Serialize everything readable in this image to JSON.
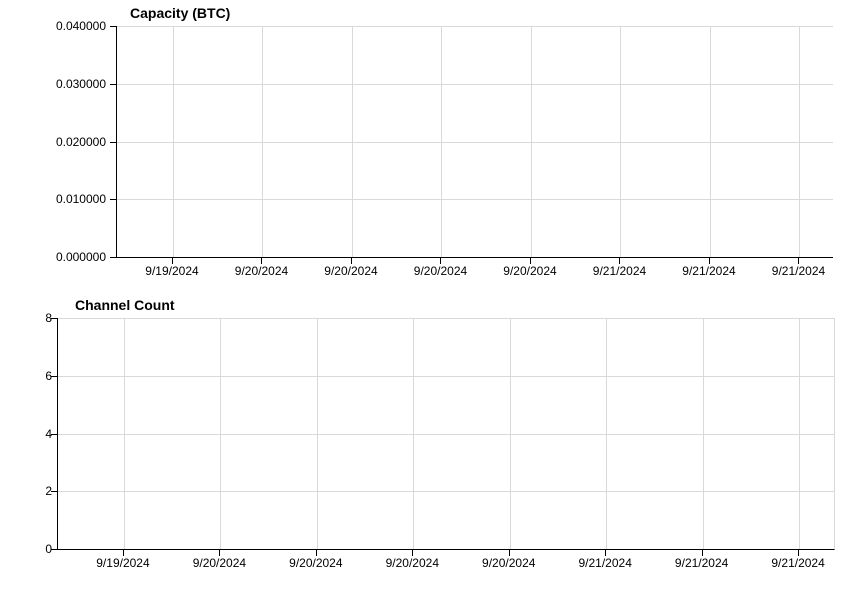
{
  "page": {
    "background": "#ffffff"
  },
  "colors": {
    "grid": "#d9d9d9",
    "axis": "#000000",
    "text": "#000000",
    "title": "#000000"
  },
  "chart_data": [
    {
      "type": "line",
      "title": "Capacity (BTC)",
      "xlabel": "",
      "ylabel": "",
      "x_tick_labels": [
        "9/19/2024",
        "9/20/2024",
        "9/20/2024",
        "9/20/2024",
        "9/20/2024",
        "9/21/2024",
        "9/21/2024",
        "9/21/2024"
      ],
      "y_tick_labels": [
        "0.000000",
        "0.010000",
        "0.020000",
        "0.030000",
        "0.040000"
      ],
      "ylim": [
        0,
        0.04
      ],
      "grid": true,
      "legend": "none",
      "series": [],
      "note": "empty plot frame - no data series rendered"
    },
    {
      "type": "line",
      "title": "Channel Count",
      "xlabel": "",
      "ylabel": "",
      "x_tick_labels": [
        "9/19/2024",
        "9/20/2024",
        "9/20/2024",
        "9/20/2024",
        "9/20/2024",
        "9/21/2024",
        "9/21/2024",
        "9/21/2024"
      ],
      "y_tick_labels": [
        "0",
        "2",
        "4",
        "6",
        "8"
      ],
      "ylim": [
        0,
        8
      ],
      "grid": true,
      "legend": "none",
      "series": [],
      "note": "empty plot frame - no data series rendered"
    }
  ]
}
